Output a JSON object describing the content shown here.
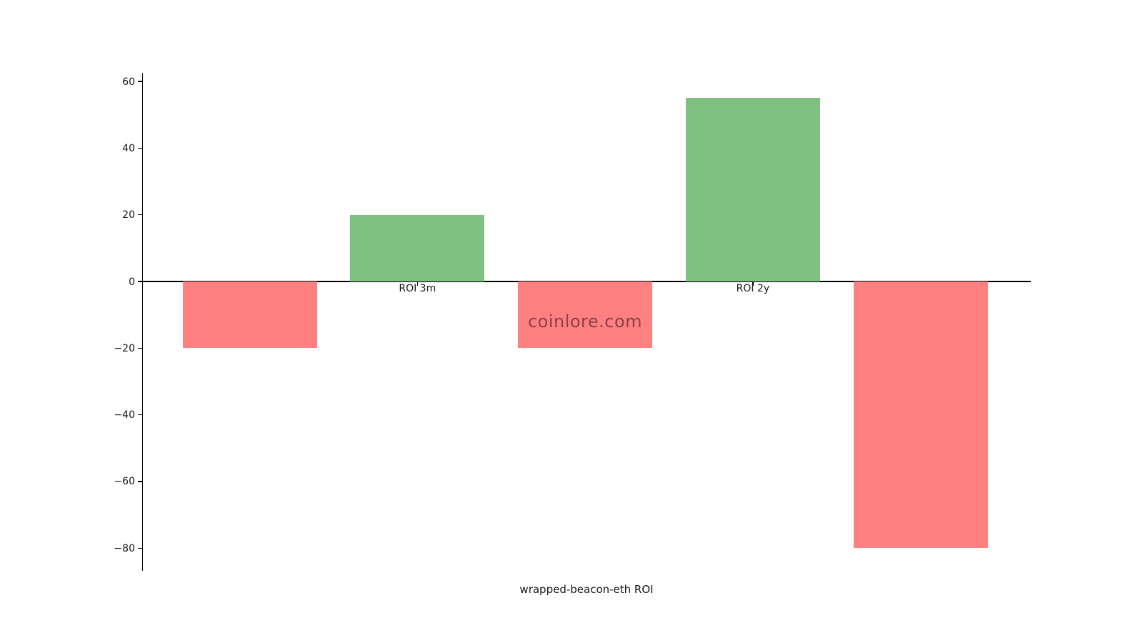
{
  "watermark": {
    "text": "coinlore.com",
    "color": "#894248"
  },
  "chart_data": {
    "type": "bar",
    "title": "",
    "xlabel": "wrapped-beacon-eth ROI",
    "ylabel": "",
    "categories": [
      "",
      "ROI 3m",
      "",
      "ROI 2y",
      ""
    ],
    "values": [
      -20,
      20,
      -20,
      55,
      -80
    ],
    "yticks": [
      60,
      40,
      20,
      0,
      -20,
      -40,
      -60,
      -80
    ],
    "ytick_labels": [
      "60",
      "40",
      "20",
      "0",
      "−20",
      "−40",
      "−60",
      "−80"
    ],
    "ylim": [
      -86.8,
      62.6
    ],
    "grid": false,
    "legend": false,
    "positive_color": "#7fbf7f",
    "negative_color": "#ff8080",
    "axis_color": "#000000",
    "tick_label_color": "#151515"
  }
}
